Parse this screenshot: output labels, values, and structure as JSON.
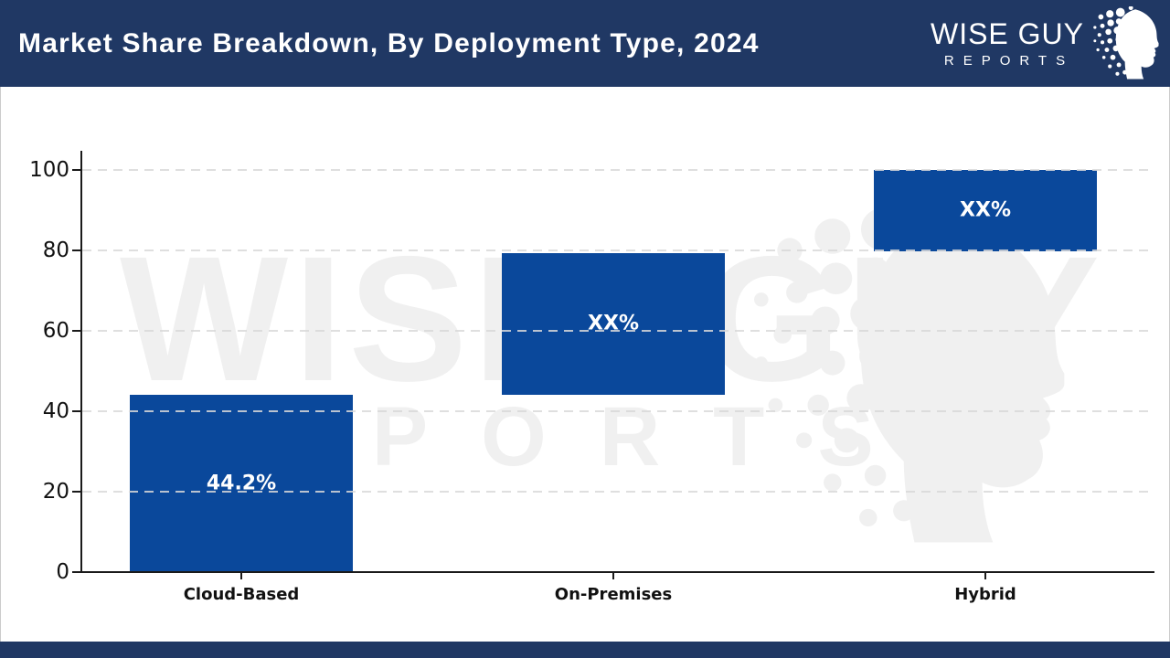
{
  "header": {
    "title": "Market Share Breakdown, By Deployment Type, 2024",
    "background_color": "#203864",
    "logo": {
      "line1": "WISE GUY",
      "line2": "REPORTS"
    }
  },
  "watermark": {
    "line1": "WISE GUY",
    "line2": "REPORTS"
  },
  "footer": {
    "background_color": "#203864"
  },
  "chart_data": {
    "type": "bar",
    "variant": "stacked-waterfall-breakdown",
    "title": "Market Share Breakdown, By Deployment Type, 2024",
    "categories": [
      "Cloud-Based",
      "On-Premises",
      "Hybrid"
    ],
    "bars": [
      {
        "category": "Cloud-Based",
        "from": 0,
        "to": 44.2,
        "label": "44.2%"
      },
      {
        "category": "On-Premises",
        "from": 44.2,
        "to": 79.3,
        "label": "XX%"
      },
      {
        "category": "Hybrid",
        "from": 79.8,
        "to": 100,
        "label": "XX%"
      }
    ],
    "ylim": [
      0,
      100
    ],
    "yticks": [
      0,
      20,
      40,
      60,
      80,
      100
    ],
    "grid": {
      "horizontal": true,
      "style": "dashed",
      "color": "#d9d9d9"
    },
    "bar_color": "#0a489b",
    "bar_label_color": "#ffffff",
    "axis_color": "#1a1a1a"
  }
}
